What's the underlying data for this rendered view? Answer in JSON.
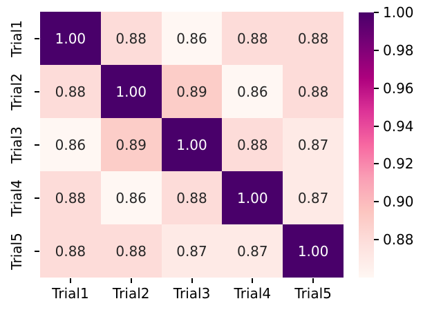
{
  "chart_data": {
    "type": "heatmap",
    "title": "",
    "xlabel": "",
    "ylabel": "",
    "x_tick_labels": [
      "Trial1",
      "Trial2",
      "Trial3",
      "Trial4",
      "Trial5"
    ],
    "y_tick_labels": [
      "Trial1",
      "Trial2",
      "Trial3",
      "Trial4",
      "Trial5"
    ],
    "matrix": [
      [
        1.0,
        0.88,
        0.86,
        0.88,
        0.88
      ],
      [
        0.88,
        1.0,
        0.89,
        0.86,
        0.88
      ],
      [
        0.86,
        0.89,
        1.0,
        0.88,
        0.87
      ],
      [
        0.88,
        0.86,
        0.88,
        1.0,
        0.87
      ],
      [
        0.88,
        0.88,
        0.87,
        0.87,
        1.0
      ]
    ],
    "annotation_format": "0.00",
    "vmin": 0.86,
    "vmax": 1.0,
    "colormap_name": "RdPu",
    "colormap_stops": [
      "#fff7f3",
      "#fde0dd",
      "#fcc5c0",
      "#fa9fb5",
      "#f768a1",
      "#dd3497",
      "#ae017e",
      "#7a0177",
      "#49006a"
    ],
    "value_colors": {
      "1.00": "#49006a",
      "0.89": "#fccdc8",
      "0.88": "#fddcd9",
      "0.87": "#feeae6",
      "0.86": "#fff7f3"
    },
    "annotation_color_dark": "#262626",
    "annotation_color_light": "#ffffff",
    "colorbar": {
      "tick_values": [
        1.0,
        0.98,
        0.96,
        0.94,
        0.92,
        0.9,
        0.88
      ],
      "tick_labels": [
        "1.00",
        "0.98",
        "0.96",
        "0.94",
        "0.92",
        "0.90",
        "0.88"
      ],
      "position": "right"
    },
    "grid": false,
    "background_color": "#ffffff"
  }
}
